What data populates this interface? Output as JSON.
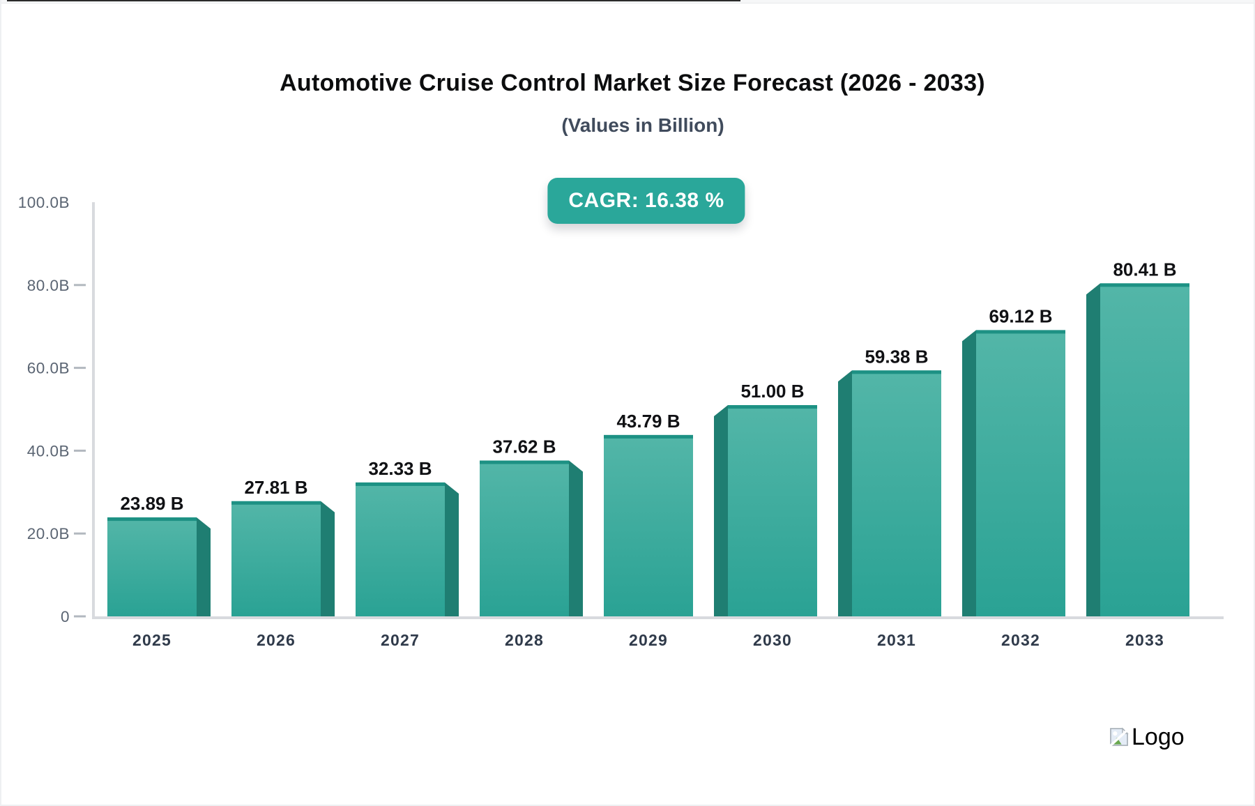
{
  "header": {
    "title": "Automotive Cruise Control Market Size Forecast (2026 - 2033)",
    "subtitle": "(Values in Billion)",
    "cagr_badge": "CAGR: 16.38 %"
  },
  "footer": {
    "logo_alt": "Logo"
  },
  "colors": {
    "bar_face_top": "#53b6a8",
    "bar_face_bottom": "#2aa294",
    "bar_side": "#1f7e72",
    "bar_top_edge": "#1d9184",
    "badge_bg": "#2aa79a",
    "axis_line": "#d8dade",
    "tick": "#b2b8bf",
    "tick_label": "#5a6472",
    "year_label": "#2f3a4a",
    "value_label": "#101114"
  },
  "chart_data": {
    "type": "bar",
    "title": "Automotive Cruise Control Market Size Forecast (2026 - 2033)",
    "subtitle": "(Values in Billion)",
    "cagr_label": "CAGR: 16.38 %",
    "categories": [
      "2025",
      "2026",
      "2027",
      "2028",
      "2029",
      "2030",
      "2031",
      "2032",
      "2033"
    ],
    "values": [
      23.89,
      27.81,
      32.33,
      37.62,
      43.79,
      51.0,
      59.38,
      69.12,
      80.41
    ],
    "value_labels": [
      "23.89 B",
      "27.81 B",
      "32.33 B",
      "37.62 B",
      "43.79 B",
      "51.00 B",
      "59.38 B",
      "69.12 B",
      "80.41 B"
    ],
    "xlabel": "",
    "ylabel": "",
    "ylim": [
      0,
      100
    ],
    "yticks": [
      {
        "v": 0,
        "label": "0"
      },
      {
        "v": 20,
        "label": "20.0B"
      },
      {
        "v": 40,
        "label": "40.0B"
      },
      {
        "v": 60,
        "label": "60.0B"
      },
      {
        "v": 80,
        "label": "80.0B"
      },
      {
        "v": 100,
        "label": "100.0B"
      }
    ],
    "grid": false,
    "legend_position": "none",
    "bar_style": "3d-teal"
  }
}
